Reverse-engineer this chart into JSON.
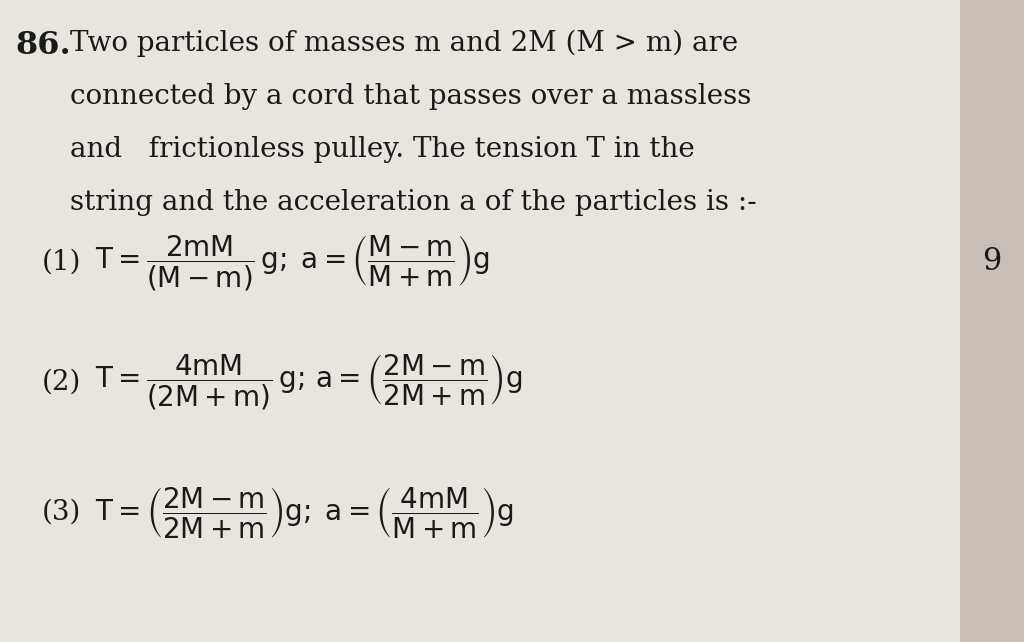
{
  "background_color": "#e8e4de",
  "text_color": "#1a1a1a",
  "question_number": "86.",
  "line1": "Two particles of masses m and 2M (M > m) are",
  "line2": "connected by a cord that passes over a massless",
  "line3": "and   frictionless pulley. The tension T in the",
  "line4": "string and the acceleration a of the particles is :-",
  "opt1_label": "(1)",
  "opt1_T": "$\\mathrm{T = \\dfrac{2mM}{(M-m)}\\,g;\\; a = \\left(\\dfrac{M-m}{M+m}\\right)g}$",
  "opt2_label": "(2)",
  "opt2_T": "$\\mathrm{T = \\dfrac{4mM}{(2M+m)}\\,g;\\,a = \\left(\\dfrac{2M-m}{2M+m}\\right)g}$",
  "opt3_label": "(3)",
  "opt3_T": "$\\mathrm{T = \\left(\\dfrac{2M-m}{2M+m}\\right)g;\\; a = \\left(\\dfrac{4mM}{M+m}\\right)g}$",
  "right_number": "9",
  "bg_right": "#c8c0b8",
  "font_size_question": 20,
  "font_size_number": 23,
  "font_size_label": 20,
  "font_size_formula": 20,
  "font_size_right": 22
}
